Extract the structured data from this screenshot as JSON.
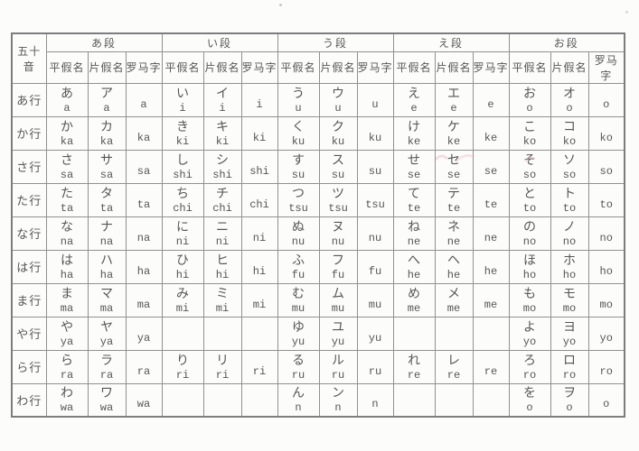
{
  "page": {
    "background": "#fcfcfb"
  },
  "colors": {
    "border": "#919191",
    "outer": "#7d7d7d",
    "text": "#565656",
    "smudge": "#e49aa9"
  },
  "table": {
    "corner_label": "五十音",
    "column_groups": [
      "あ段",
      "い段",
      "う段",
      "え段",
      "お段"
    ],
    "sub_headers": [
      "平假名",
      "片假名",
      "罗马字"
    ],
    "rows": [
      {
        "label": "あ行",
        "cells": [
          {
            "hiragana": "あ",
            "hiragana_romaji": "a",
            "katakana": "ア",
            "katakana_romaji": "a",
            "romaji": "a"
          },
          {
            "hiragana": "い",
            "hiragana_romaji": "i",
            "katakana": "イ",
            "katakana_romaji": "i",
            "romaji": "i"
          },
          {
            "hiragana": "う",
            "hiragana_romaji": "u",
            "katakana": "ウ",
            "katakana_romaji": "u",
            "romaji": "u"
          },
          {
            "hiragana": "え",
            "hiragana_romaji": "e",
            "katakana": "エ",
            "katakana_romaji": "e",
            "romaji": "e"
          },
          {
            "hiragana": "お",
            "hiragana_romaji": "o",
            "katakana": "オ",
            "katakana_romaji": "o",
            "romaji": "o"
          }
        ]
      },
      {
        "label": "か行",
        "cells": [
          {
            "hiragana": "か",
            "hiragana_romaji": "ka",
            "katakana": "カ",
            "katakana_romaji": "ka",
            "romaji": "ka"
          },
          {
            "hiragana": "き",
            "hiragana_romaji": "ki",
            "katakana": "キ",
            "katakana_romaji": "ki",
            "romaji": "ki"
          },
          {
            "hiragana": "く",
            "hiragana_romaji": "ku",
            "katakana": "ク",
            "katakana_romaji": "ku",
            "romaji": "ku"
          },
          {
            "hiragana": "け",
            "hiragana_romaji": "ke",
            "katakana": "ケ",
            "katakana_romaji": "ke",
            "romaji": "ke"
          },
          {
            "hiragana": "こ",
            "hiragana_romaji": "ko",
            "katakana": "コ",
            "katakana_romaji": "ko",
            "romaji": "ko"
          }
        ]
      },
      {
        "label": "さ行",
        "cells": [
          {
            "hiragana": "さ",
            "hiragana_romaji": "sa",
            "katakana": "サ",
            "katakana_romaji": "sa",
            "romaji": "sa"
          },
          {
            "hiragana": "し",
            "hiragana_romaji": "shi",
            "katakana": "シ",
            "katakana_romaji": "shi",
            "romaji": "shi"
          },
          {
            "hiragana": "す",
            "hiragana_romaji": "su",
            "katakana": "ス",
            "katakana_romaji": "su",
            "romaji": "su"
          },
          {
            "hiragana": "せ",
            "hiragana_romaji": "se",
            "katakana": "セ",
            "katakana_romaji": "se",
            "romaji": "se"
          },
          {
            "hiragana": "そ",
            "hiragana_romaji": "so",
            "katakana": "ソ",
            "katakana_romaji": "so",
            "romaji": "so"
          }
        ]
      },
      {
        "label": "た行",
        "cells": [
          {
            "hiragana": "た",
            "hiragana_romaji": "ta",
            "katakana": "タ",
            "katakana_romaji": "ta",
            "romaji": "ta"
          },
          {
            "hiragana": "ち",
            "hiragana_romaji": "chi",
            "katakana": "チ",
            "katakana_romaji": "chi",
            "romaji": "chi"
          },
          {
            "hiragana": "つ",
            "hiragana_romaji": "tsu",
            "katakana": "ツ",
            "katakana_romaji": "tsu",
            "romaji": "tsu"
          },
          {
            "hiragana": "て",
            "hiragana_romaji": "te",
            "katakana": "テ",
            "katakana_romaji": "te",
            "romaji": "te"
          },
          {
            "hiragana": "と",
            "hiragana_romaji": "to",
            "katakana": "ト",
            "katakana_romaji": "to",
            "romaji": "to"
          }
        ]
      },
      {
        "label": "な行",
        "cells": [
          {
            "hiragana": "な",
            "hiragana_romaji": "na",
            "katakana": "ナ",
            "katakana_romaji": "na",
            "romaji": "na"
          },
          {
            "hiragana": "に",
            "hiragana_romaji": "ni",
            "katakana": "ニ",
            "katakana_romaji": "ni",
            "romaji": "ni"
          },
          {
            "hiragana": "ぬ",
            "hiragana_romaji": "nu",
            "katakana": "ヌ",
            "katakana_romaji": "nu",
            "romaji": "nu"
          },
          {
            "hiragana": "ね",
            "hiragana_romaji": "ne",
            "katakana": "ネ",
            "katakana_romaji": "ne",
            "romaji": "ne"
          },
          {
            "hiragana": "の",
            "hiragana_romaji": "no",
            "katakana": "ノ",
            "katakana_romaji": "no",
            "romaji": "no"
          }
        ]
      },
      {
        "label": "は行",
        "cells": [
          {
            "hiragana": "は",
            "hiragana_romaji": "ha",
            "katakana": "ハ",
            "katakana_romaji": "ha",
            "romaji": "ha"
          },
          {
            "hiragana": "ひ",
            "hiragana_romaji": "hi",
            "katakana": "ヒ",
            "katakana_romaji": "hi",
            "romaji": "hi"
          },
          {
            "hiragana": "ふ",
            "hiragana_romaji": "fu",
            "katakana": "フ",
            "katakana_romaji": "fu",
            "romaji": "fu"
          },
          {
            "hiragana": "へ",
            "hiragana_romaji": "he",
            "katakana": "ヘ",
            "katakana_romaji": "he",
            "romaji": "he"
          },
          {
            "hiragana": "ほ",
            "hiragana_romaji": "ho",
            "katakana": "ホ",
            "katakana_romaji": "ho",
            "romaji": "ho"
          }
        ]
      },
      {
        "label": "ま行",
        "cells": [
          {
            "hiragana": "ま",
            "hiragana_romaji": "ma",
            "katakana": "マ",
            "katakana_romaji": "ma",
            "romaji": "ma"
          },
          {
            "hiragana": "み",
            "hiragana_romaji": "mi",
            "katakana": "ミ",
            "katakana_romaji": "mi",
            "romaji": "mi"
          },
          {
            "hiragana": "む",
            "hiragana_romaji": "mu",
            "katakana": "ム",
            "katakana_romaji": "mu",
            "romaji": "mu"
          },
          {
            "hiragana": "め",
            "hiragana_romaji": "me",
            "katakana": "メ",
            "katakana_romaji": "me",
            "romaji": "me"
          },
          {
            "hiragana": "も",
            "hiragana_romaji": "mo",
            "katakana": "モ",
            "katakana_romaji": "mo",
            "romaji": "mo"
          }
        ]
      },
      {
        "label": "や行",
        "cells": [
          {
            "hiragana": "や",
            "hiragana_romaji": "ya",
            "katakana": "ヤ",
            "katakana_romaji": "ya",
            "romaji": "ya"
          },
          null,
          {
            "hiragana": "ゆ",
            "hiragana_romaji": "yu",
            "katakana": "ユ",
            "katakana_romaji": "yu",
            "romaji": "yu"
          },
          null,
          {
            "hiragana": "よ",
            "hiragana_romaji": "yo",
            "katakana": "ヨ",
            "katakana_romaji": "yo",
            "romaji": "yo"
          }
        ]
      },
      {
        "label": "ら行",
        "cells": [
          {
            "hiragana": "ら",
            "hiragana_romaji": "ra",
            "katakana": "ラ",
            "katakana_romaji": "ra",
            "romaji": "ra"
          },
          {
            "hiragana": "り",
            "hiragana_romaji": "ri",
            "katakana": "リ",
            "katakana_romaji": "ri",
            "romaji": "ri"
          },
          {
            "hiragana": "る",
            "hiragana_romaji": "ru",
            "katakana": "ル",
            "katakana_romaji": "ru",
            "romaji": "ru"
          },
          {
            "hiragana": "れ",
            "hiragana_romaji": "re",
            "katakana": "レ",
            "katakana_romaji": "re",
            "romaji": "re"
          },
          {
            "hiragana": "ろ",
            "hiragana_romaji": "ro",
            "katakana": "ロ",
            "katakana_romaji": "ro",
            "romaji": "ro"
          }
        ]
      },
      {
        "label": "わ行",
        "cells": [
          {
            "hiragana": "わ",
            "hiragana_romaji": "wa",
            "katakana": "ワ",
            "katakana_romaji": "wa",
            "romaji": "wa"
          },
          null,
          {
            "hiragana": "ん",
            "hiragana_romaji": "n",
            "katakana": "ン",
            "katakana_romaji": "n",
            "romaji": "n"
          },
          null,
          {
            "hiragana": "を",
            "hiragana_romaji": "o",
            "katakana": "ヲ",
            "katakana_romaji": "o",
            "romaji": "o"
          }
        ]
      }
    ]
  }
}
